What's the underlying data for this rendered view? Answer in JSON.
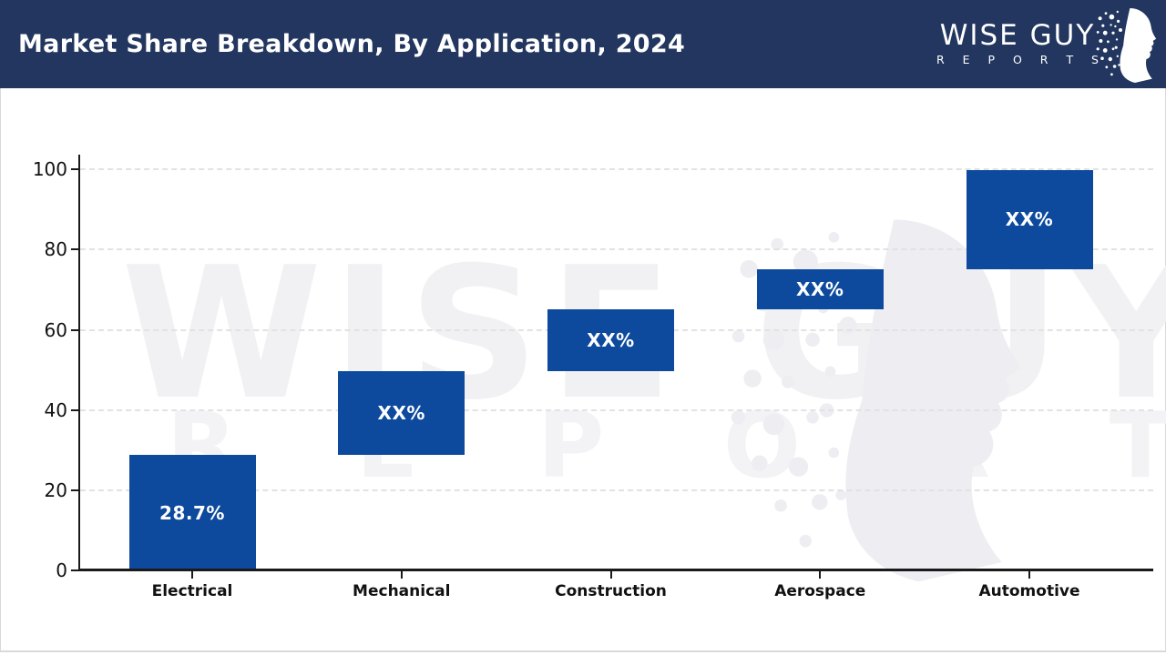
{
  "header": {
    "title": "Market Share Breakdown, By Application, 2024",
    "brand": {
      "line1": "WISE GUY",
      "line2": "R E P O R T S"
    }
  },
  "watermark": {
    "line1": "WISE GUY",
    "line2": "R E P O R T S"
  },
  "colors": {
    "header_bg": "#22365F",
    "bar": "#0D4A9D",
    "axis": "#1A1A1A",
    "gridline": "#E2E2E2",
    "bar_label_text": "#FFFFFF",
    "watermark": "#F1F1F4"
  },
  "chart_data": {
    "type": "bar",
    "subtype": "waterfall",
    "title": "Market Share Breakdown, By Application, 2024",
    "categories": [
      "Electrical",
      "Mechanical",
      "Construction",
      "Aerospace",
      "Automotive"
    ],
    "segments": [
      {
        "category": "Electrical",
        "start": 0,
        "end": 28.7,
        "label": "28.7%"
      },
      {
        "category": "Mechanical",
        "start": 28.7,
        "end": 49.7,
        "label": "XX%"
      },
      {
        "category": "Construction",
        "start": 49.7,
        "end": 65.0,
        "label": "XX%"
      },
      {
        "category": "Aerospace",
        "start": 65.0,
        "end": 75.2,
        "label": "XX%"
      },
      {
        "category": "Automotive",
        "start": 75.2,
        "end": 99.8,
        "label": "XX%"
      }
    ],
    "xlabel": "",
    "ylabel": "",
    "ylim": [
      0,
      105
    ],
    "yticks": [
      0,
      20,
      40,
      60,
      80,
      100
    ],
    "grid": true,
    "legend": null
  }
}
